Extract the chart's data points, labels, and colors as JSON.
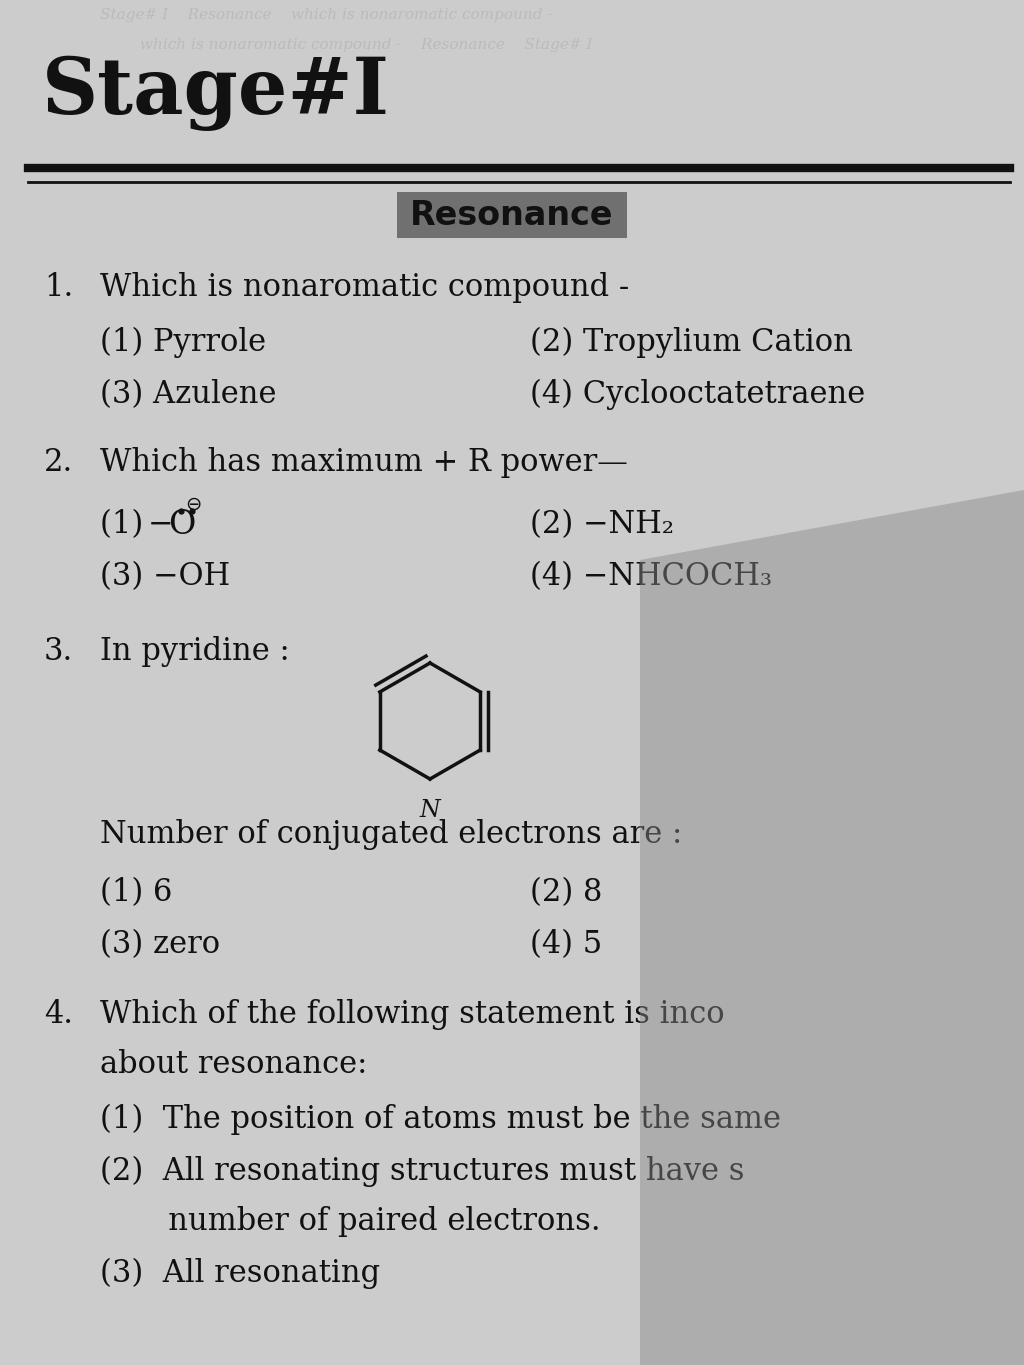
{
  "bg_color": "#cccccc",
  "title": "Stage#I",
  "section_label": "Resonance",
  "section_label_bg": "#777777",
  "q1_num": "1.",
  "q1_text": "Which is nonaromatic compound -",
  "q1_opts": [
    [
      "(1) Pyrrole",
      "(2) Tropylium Cation"
    ],
    [
      "(3) Azulene",
      "(4) Cyclooctatetraene"
    ]
  ],
  "q2_num": "2.",
  "q2_text": "Which has maximum + R power—",
  "q2_opt1_prefix": "(1) ",
  "q2_opt2": "(2) −NH₂",
  "q2_opt3": "(3) −OH",
  "q2_opt4": "(4) −NHCOCH₃",
  "q3_num": "3.",
  "q3_text": "In pyridine :",
  "q3_subtext": "Number of conjugated electrons are :",
  "q3_opts": [
    [
      "(1) 6",
      "(2) 8"
    ],
    [
      "(3) zero",
      "(4) 5"
    ]
  ],
  "q4_num": "4.",
  "q4_text": "Which of the following statement is inco",
  "q4_text2": "about resonance:",
  "q4_opt1": "(1)  The position of atoms must be the same",
  "q4_opt2a": "(2)  All resonating structures must have s",
  "q4_opt2b": "       number of paired electrons.",
  "q4_opt3": "(3)  All resonating",
  "line_color": "#111111",
  "text_color": "#111111",
  "shadow_color": "#888888",
  "shadow_alpha": 0.45,
  "watermark_color": "#aaaaaa",
  "watermark_alpha": 0.5
}
